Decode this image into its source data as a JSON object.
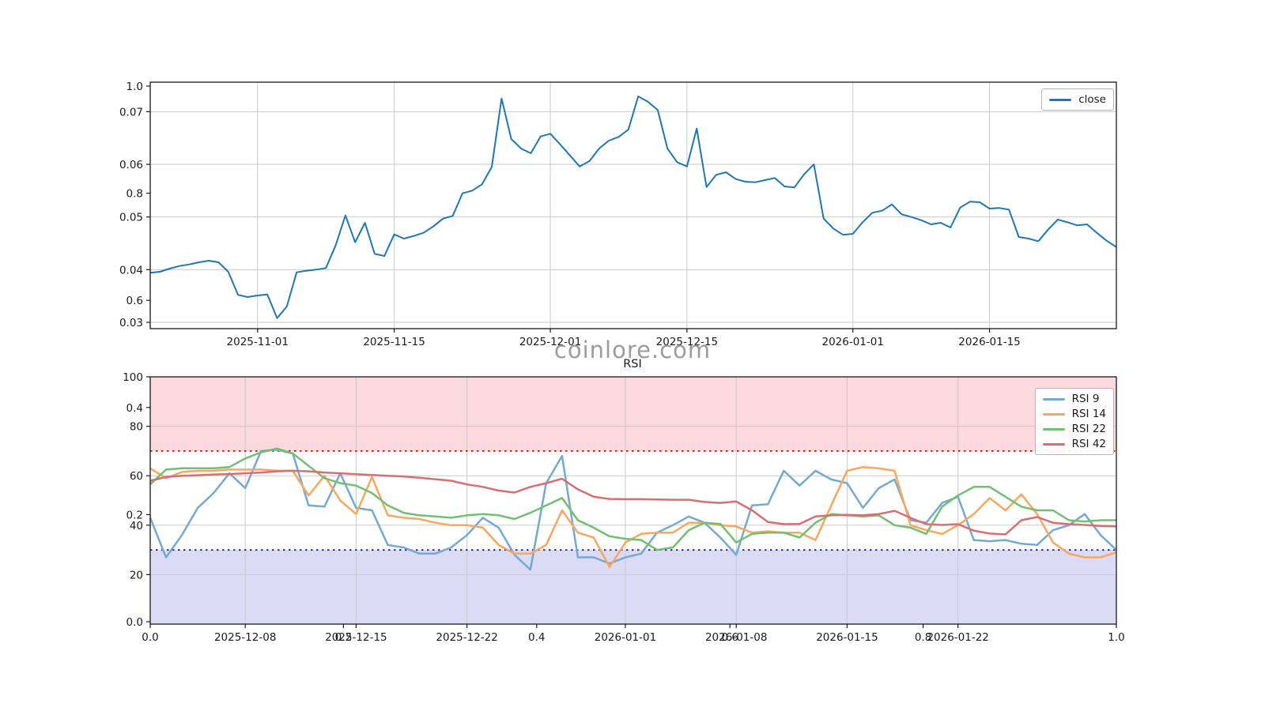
{
  "watermark": "coinlore.com",
  "colors": {
    "close_line": "#1f77b4",
    "rsi9": "#74a9d1",
    "rsi14": "#f9a75d",
    "rsi22": "#71c071",
    "rsi42": "#d96e71",
    "overbought_band": "#fbd9dc",
    "oversold_band": "#dcdbf5",
    "overbought_dotted_line": "#e10000",
    "oversold_dotted_line": "#1515cf",
    "grid": "#cacaca",
    "spine": "#1a1a1a",
    "tick_text": "#1a1a1a",
    "watermark_text": "#9c9c9c"
  },
  "chart_data": [
    {
      "type": "line",
      "name": "price-chart",
      "grid": true,
      "legend_position": "upper right",
      "ylim": [
        0.0288,
        0.0756
      ],
      "y_tick_values": [
        0.03,
        0.04,
        0.05,
        0.06,
        0.07
      ],
      "y_tick_labels": [
        "0.03",
        "0.04",
        "0.05",
        "0.06",
        "0.07"
      ],
      "overlay_y_tick_labels": [
        "1.0",
        "0.8",
        "0.6"
      ],
      "x_tick_dates": [
        "2025-11-01",
        "2025-11-15",
        "2025-12-01",
        "2025-12-15",
        "2026-01-01",
        "2026-01-15"
      ],
      "series": [
        {
          "name": "close",
          "color": "#1f77b4",
          "dates": [
            "2025-10-21",
            "2025-10-22",
            "2025-10-23",
            "2025-10-24",
            "2025-10-25",
            "2025-10-26",
            "2025-10-27",
            "2025-10-28",
            "2025-10-29",
            "2025-10-30",
            "2025-10-31",
            "2025-11-01",
            "2025-11-02",
            "2025-11-03",
            "2025-11-04",
            "2025-11-05",
            "2025-11-06",
            "2025-11-07",
            "2025-11-08",
            "2025-11-09",
            "2025-11-10",
            "2025-11-11",
            "2025-11-12",
            "2025-11-13",
            "2025-11-14",
            "2025-11-15",
            "2025-11-16",
            "2025-11-17",
            "2025-11-18",
            "2025-11-19",
            "2025-11-20",
            "2025-11-21",
            "2025-11-22",
            "2025-11-23",
            "2025-11-24",
            "2025-11-25",
            "2025-11-26",
            "2025-11-27",
            "2025-11-28",
            "2025-11-29",
            "2025-11-30",
            "2025-12-01",
            "2025-12-02",
            "2025-12-03",
            "2025-12-04",
            "2025-12-05",
            "2025-12-06",
            "2025-12-07",
            "2025-12-08",
            "2025-12-09",
            "2025-12-10",
            "2025-12-11",
            "2025-12-12",
            "2025-12-13",
            "2025-12-14",
            "2025-12-15",
            "2025-12-16",
            "2025-12-17",
            "2025-12-18",
            "2025-12-19",
            "2025-12-20",
            "2025-12-21",
            "2025-12-22",
            "2025-12-23",
            "2025-12-24",
            "2025-12-25",
            "2025-12-26",
            "2025-12-27",
            "2025-12-28",
            "2025-12-29",
            "2025-12-30",
            "2025-12-31",
            "2026-01-01",
            "2026-01-02",
            "2026-01-03",
            "2026-01-04",
            "2026-01-05",
            "2026-01-06",
            "2026-01-07",
            "2026-01-08",
            "2026-01-09",
            "2026-01-10",
            "2026-01-11",
            "2026-01-12",
            "2026-01-13",
            "2026-01-14",
            "2026-01-15",
            "2026-01-16",
            "2026-01-17",
            "2026-01-18",
            "2026-01-19",
            "2026-01-20",
            "2026-01-21",
            "2026-01-22",
            "2026-01-23",
            "2026-01-24",
            "2026-01-25",
            "2026-01-26",
            "2026-01-27",
            "2026-01-28"
          ],
          "values": [
            0.0394,
            0.0396,
            0.0402,
            0.0407,
            0.041,
            0.0414,
            0.0417,
            0.0414,
            0.0396,
            0.0352,
            0.0348,
            0.0351,
            0.0353,
            0.0308,
            0.033,
            0.0395,
            0.0398,
            0.04,
            0.0403,
            0.0446,
            0.0503,
            0.0452,
            0.0489,
            0.043,
            0.0426,
            0.0467,
            0.0459,
            0.0464,
            0.047,
            0.0482,
            0.0497,
            0.0502,
            0.0545,
            0.055,
            0.0562,
            0.0595,
            0.0725,
            0.0648,
            0.063,
            0.0621,
            0.0653,
            0.0658,
            0.0638,
            0.0617,
            0.0596,
            0.0606,
            0.063,
            0.0645,
            0.0652,
            0.0666,
            0.0729,
            0.0719,
            0.0703,
            0.063,
            0.0604,
            0.0596,
            0.0668,
            0.0557,
            0.058,
            0.0585,
            0.0572,
            0.0567,
            0.0566,
            0.057,
            0.0574,
            0.0558,
            0.0556,
            0.0581,
            0.06,
            0.0497,
            0.0478,
            0.0466,
            0.0468,
            0.049,
            0.0508,
            0.0512,
            0.0524,
            0.0505,
            0.05,
            0.0494,
            0.0486,
            0.0489,
            0.048,
            0.0518,
            0.0529,
            0.0528,
            0.0516,
            0.0517,
            0.0514,
            0.0462,
            0.0459,
            0.0454,
            0.0476,
            0.0495,
            0.049,
            0.0484,
            0.0486,
            0.047,
            0.0455,
            0.0443
          ]
        }
      ]
    },
    {
      "type": "line",
      "name": "rsi-chart",
      "title": "RSI",
      "grid": true,
      "legend_position": "upper right",
      "ylim": [
        0,
        100
      ],
      "y_tick_values": [
        20,
        40,
        60,
        80,
        100
      ],
      "y_tick_labels": [
        "20",
        "40",
        "60",
        "80",
        "100"
      ],
      "overlay_y_tick_labels": [
        "0.4",
        "0.2",
        "0.0"
      ],
      "overlay_x_tick_labels": [
        "0.0",
        "0.2",
        "0.4",
        "0.6",
        "0.8",
        "1.0"
      ],
      "x_tick_dates": [
        "2025-12-08",
        "2025-12-15",
        "2025-12-22",
        "2026-01-01",
        "2026-01-08",
        "2026-01-15",
        "2026-01-22"
      ],
      "overbought_level": 70,
      "oversold_level": 30,
      "dates": [
        "2025-12-02",
        "2025-12-03",
        "2025-12-04",
        "2025-12-05",
        "2025-12-06",
        "2025-12-07",
        "2025-12-08",
        "2025-12-09",
        "2025-12-10",
        "2025-12-11",
        "2025-12-12",
        "2025-12-13",
        "2025-12-14",
        "2025-12-15",
        "2025-12-16",
        "2025-12-17",
        "2025-12-18",
        "2025-12-19",
        "2025-12-20",
        "2025-12-21",
        "2025-12-22",
        "2025-12-23",
        "2025-12-24",
        "2025-12-25",
        "2025-12-26",
        "2025-12-27",
        "2025-12-28",
        "2025-12-29",
        "2025-12-30",
        "2025-12-31",
        "2026-01-01",
        "2026-01-02",
        "2026-01-03",
        "2026-01-04",
        "2026-01-05",
        "2026-01-06",
        "2026-01-07",
        "2026-01-08",
        "2026-01-09",
        "2026-01-10",
        "2026-01-11",
        "2026-01-12",
        "2026-01-13",
        "2026-01-14",
        "2026-01-15",
        "2026-01-16",
        "2026-01-17",
        "2026-01-18",
        "2026-01-19",
        "2026-01-20",
        "2026-01-21",
        "2026-01-22",
        "2026-01-23",
        "2026-01-24",
        "2026-01-25",
        "2026-01-26",
        "2026-01-27",
        "2026-01-28",
        "2026-01-29",
        "2026-01-30",
        "2026-01-31",
        "2026-02-01"
      ],
      "series": [
        {
          "name": "RSI 9",
          "color": "#74a9d1",
          "values": [
            43,
            27,
            36,
            47,
            53,
            61,
            55,
            70,
            70.5,
            69,
            48,
            47.5,
            61,
            47,
            46,
            32,
            31,
            28.5,
            28.5,
            31,
            36,
            43,
            39,
            28,
            22,
            57,
            68,
            27,
            27,
            24.5,
            27,
            28.5,
            37,
            40,
            43.5,
            41,
            35,
            28,
            48,
            48.5,
            62,
            56,
            62,
            58.5,
            57,
            47,
            55,
            58.5,
            42,
            41,
            49,
            51.5,
            34,
            33.5,
            34,
            32.5,
            32,
            38,
            40,
            44.5,
            36,
            30
          ]
        },
        {
          "name": "RSI 14",
          "color": "#f9a75d",
          "values": [
            63,
            59,
            61.5,
            62,
            62,
            62.5,
            62.5,
            62.5,
            62,
            62,
            52,
            60,
            50,
            44.5,
            59.5,
            44,
            43,
            42.5,
            41,
            40,
            40,
            39,
            32,
            28.5,
            28.5,
            32,
            46,
            37,
            35,
            23,
            33,
            36.5,
            37,
            37,
            41,
            41,
            40,
            39.5,
            37,
            37.5,
            37,
            37,
            34,
            48,
            62,
            63.5,
            63,
            62,
            40,
            38,
            36.5,
            40,
            44.5,
            51,
            46,
            52.5,
            44.5,
            33,
            28.5,
            27,
            27,
            29
          ]
        },
        {
          "name": "RSI 22",
          "color": "#71c071",
          "values": [
            56.5,
            62.5,
            63,
            63,
            63,
            63.5,
            67,
            69.5,
            71,
            69,
            64,
            59,
            57,
            56,
            53,
            48,
            45,
            44,
            43.5,
            43,
            44,
            44.5,
            44,
            42.5,
            45,
            48,
            51,
            42,
            39,
            35.5,
            34.5,
            34,
            30,
            31,
            38,
            41,
            40.5,
            33,
            36.5,
            37,
            37,
            35,
            41,
            44.5,
            44,
            43.5,
            44,
            40,
            39,
            36.5,
            47.5,
            52,
            55.5,
            55.5,
            51.5,
            47.5,
            46,
            46,
            42,
            41.5,
            42,
            42
          ]
        },
        {
          "name": "RSI 42",
          "color": "#d96e71",
          "values": [
            58,
            59.5,
            60,
            60.2,
            60.5,
            60.7,
            61,
            61.3,
            61.8,
            62,
            61.8,
            61.3,
            61,
            60.6,
            60.3,
            60,
            59.7,
            59.2,
            58.6,
            58,
            56.5,
            55.5,
            54,
            53.2,
            55.5,
            57,
            58.8,
            54.5,
            51.5,
            50.6,
            50.5,
            50.5,
            50.4,
            50.3,
            50.3,
            49.4,
            49,
            49.6,
            46,
            41.3,
            40.4,
            40.5,
            43.5,
            44,
            44.2,
            44,
            44.5,
            45.8,
            43,
            40.4,
            40.1,
            40.4,
            37.8,
            36.6,
            36.3,
            42,
            43.3,
            41,
            40.4,
            40.1,
            39.7,
            39.5
          ]
        }
      ]
    }
  ]
}
